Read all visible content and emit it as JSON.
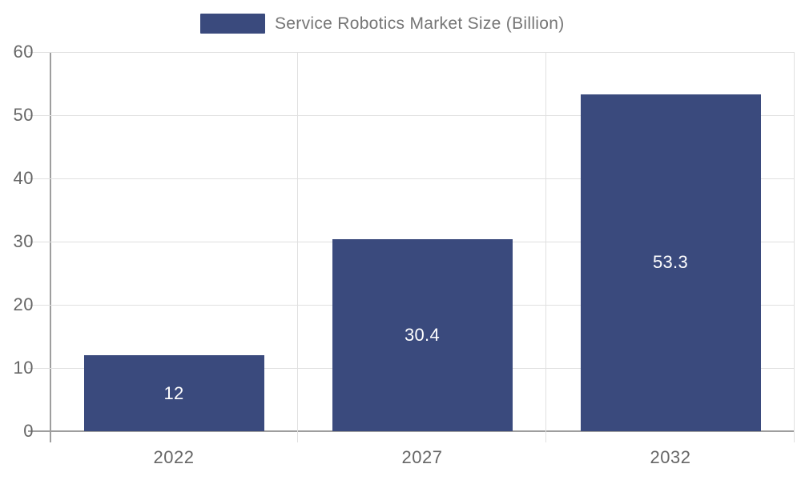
{
  "legend": {
    "label": "Service Robotics Market Size (Billion)"
  },
  "chart_data": {
    "type": "bar",
    "title": "Service Robotics Market Size (Billion)",
    "categories": [
      "2022",
      "2027",
      "2032"
    ],
    "values": [
      12,
      30.4,
      53.3
    ],
    "series": [
      {
        "name": "Service Robotics Market Size (Billion)",
        "values": [
          12,
          30.4,
          53.3
        ]
      }
    ],
    "xlabel": "",
    "ylabel": "",
    "ylim": [
      0,
      60
    ],
    "yticks": [
      0,
      10,
      20,
      30,
      40,
      50,
      60
    ],
    "grid": true,
    "legend_position": "top-center",
    "bar_labels_inside": true
  },
  "colors": {
    "bar": "#3a4a7d",
    "gridline": "#e0e0e0",
    "axis_line": "#9e9e9e",
    "tick_text": "#666666",
    "legend_text": "#757575",
    "value_text": "#ffffff",
    "background": "#ffffff"
  }
}
